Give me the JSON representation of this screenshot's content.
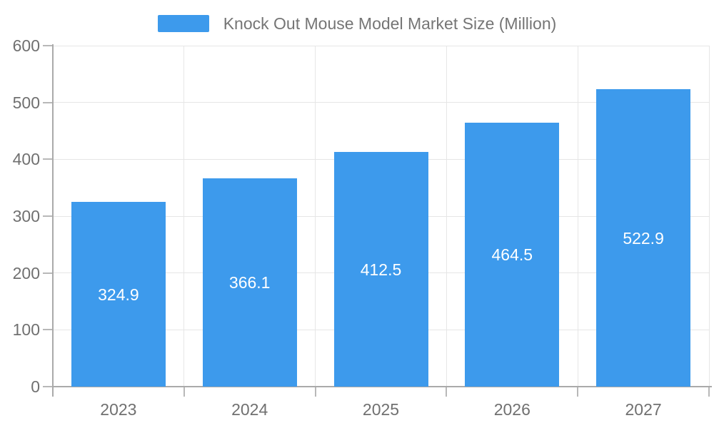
{
  "chart_data": {
    "type": "bar",
    "title": "Knock Out Mouse Model Market Size (Million)",
    "categories": [
      "2023",
      "2024",
      "2025",
      "2026",
      "2027"
    ],
    "values": [
      324.9,
      366.1,
      412.5,
      464.5,
      522.9
    ],
    "xlabel": "",
    "ylabel": "",
    "ylim": [
      0,
      600
    ],
    "yticks": [
      0,
      100,
      200,
      300,
      400,
      500,
      600
    ],
    "grid": true,
    "legend_position": "top-center",
    "value_label_position": "inside-center",
    "colors": {
      "bar": "#3d9aec",
      "axis_text": "#707070",
      "legend_text": "#757575",
      "value_label": "#ffffff",
      "gridline": "#e6e6e6",
      "axis_line": "#aaaaaa"
    }
  }
}
